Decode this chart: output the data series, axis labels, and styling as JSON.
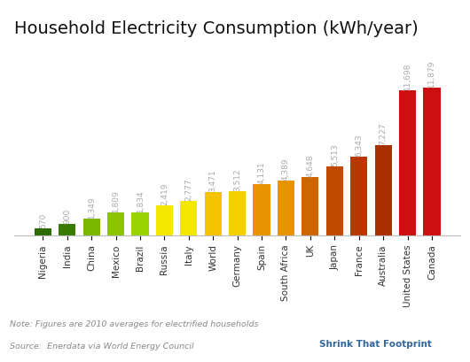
{
  "title": "Household Electricity Consumption (kWh/year)",
  "categories": [
    "Nigeria",
    "India",
    "China",
    "Mexico",
    "Brazil",
    "Russia",
    "Italy",
    "World",
    "Germany",
    "Spain",
    "South Africa",
    "UK",
    "Japan",
    "France",
    "Australia",
    "United States",
    "Canada"
  ],
  "values": [
    570,
    900,
    1349,
    1809,
    1834,
    2419,
    2777,
    3471,
    3512,
    4131,
    4389,
    4648,
    5513,
    6343,
    7227,
    11698,
    11879
  ],
  "bar_colors": [
    "#2d6a00",
    "#3a7a00",
    "#7ab800",
    "#8dc400",
    "#9ad400",
    "#f5e800",
    "#f5e800",
    "#f5c400",
    "#f5d000",
    "#e89400",
    "#e89400",
    "#cc6600",
    "#c04a00",
    "#b83800",
    "#a83000",
    "#cc1010",
    "#cc1010"
  ],
  "note": "Note: Figures are 2010 averages for electrified households",
  "source": "Source:  Enerdata via World Energy Council",
  "background_color": "#ffffff",
  "label_color": "#aaaaaa",
  "title_fontsize": 14,
  "tick_fontsize": 7.5,
  "value_fontsize": 6.5
}
